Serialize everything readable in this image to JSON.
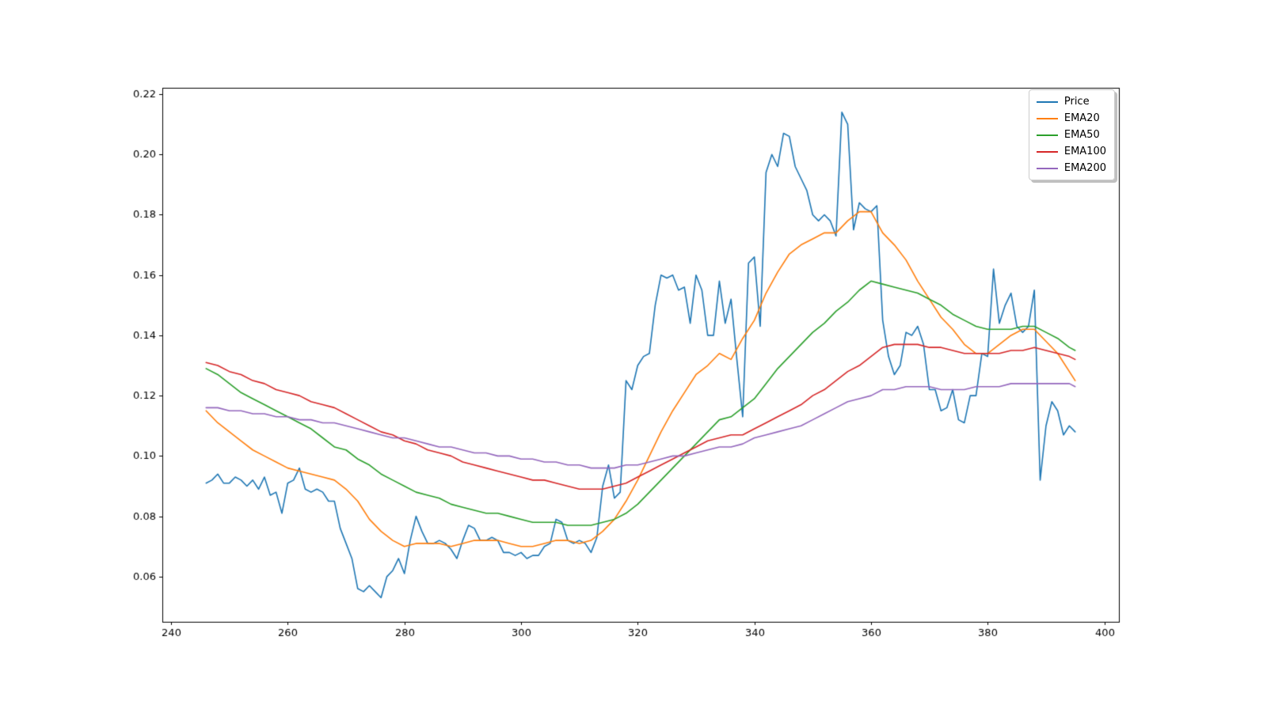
{
  "figure": {
    "background": "#ffffff",
    "text_color": "#000000"
  },
  "chart_data": {
    "type": "line",
    "title": "",
    "xlabel": "",
    "ylabel": "",
    "grid": false,
    "xlim": [
      238.5,
      402.5
    ],
    "ylim": [
      0.045,
      0.2221
    ],
    "xticks": [
      240,
      260,
      280,
      300,
      320,
      340,
      360,
      380,
      400
    ],
    "yticks": [
      0.06,
      0.08,
      0.1,
      0.12,
      0.14,
      0.16,
      0.18,
      0.2,
      0.22
    ],
    "legend": {
      "position": "upper right",
      "entries": [
        "Price",
        "EMA20",
        "EMA50",
        "EMA100",
        "EMA200"
      ]
    },
    "x_ema": [
      246,
      248,
      250,
      252,
      254,
      256,
      258,
      260,
      262,
      264,
      266,
      268,
      270,
      272,
      274,
      276,
      278,
      280,
      282,
      284,
      286,
      288,
      290,
      292,
      294,
      296,
      298,
      300,
      302,
      304,
      306,
      308,
      310,
      312,
      314,
      316,
      318,
      320,
      322,
      324,
      326,
      328,
      330,
      332,
      334,
      336,
      338,
      340,
      342,
      344,
      346,
      348,
      350,
      352,
      354,
      356,
      358,
      360,
      362,
      364,
      366,
      368,
      370,
      372,
      374,
      376,
      378,
      380,
      382,
      384,
      386,
      388,
      390,
      392,
      394,
      395
    ],
    "series": [
      {
        "name": "Price",
        "color": "#1f77b4",
        "x": [
          246,
          247,
          248,
          249,
          250,
          251,
          252,
          253,
          254,
          255,
          256,
          257,
          258,
          259,
          260,
          261,
          262,
          263,
          264,
          265,
          266,
          267,
          268,
          269,
          270,
          271,
          272,
          273,
          274,
          275,
          276,
          277,
          278,
          279,
          280,
          281,
          282,
          283,
          284,
          285,
          286,
          287,
          288,
          289,
          290,
          291,
          292,
          293,
          294,
          295,
          296,
          297,
          298,
          299,
          300,
          301,
          302,
          303,
          304,
          305,
          306,
          307,
          308,
          309,
          310,
          311,
          312,
          313,
          314,
          315,
          316,
          317,
          318,
          319,
          320,
          321,
          322,
          323,
          324,
          325,
          326,
          327,
          328,
          329,
          330,
          331,
          332,
          333,
          334,
          335,
          336,
          337,
          338,
          339,
          340,
          341,
          342,
          343,
          344,
          345,
          346,
          347,
          348,
          349,
          350,
          351,
          352,
          353,
          354,
          355,
          356,
          357,
          358,
          359,
          360,
          361,
          362,
          363,
          364,
          365,
          366,
          367,
          368,
          369,
          370,
          371,
          372,
          373,
          374,
          375,
          376,
          377,
          378,
          379,
          380,
          381,
          382,
          383,
          384,
          385,
          386,
          387,
          388,
          389,
          390,
          391,
          392,
          393,
          394,
          395
        ],
        "y": [
          0.091,
          0.092,
          0.094,
          0.091,
          0.091,
          0.093,
          0.092,
          0.09,
          0.092,
          0.089,
          0.093,
          0.087,
          0.088,
          0.081,
          0.091,
          0.092,
          0.096,
          0.089,
          0.088,
          0.089,
          0.088,
          0.085,
          0.085,
          0.076,
          0.071,
          0.066,
          0.056,
          0.055,
          0.057,
          0.055,
          0.053,
          0.06,
          0.062,
          0.066,
          0.061,
          0.072,
          0.08,
          0.075,
          0.071,
          0.071,
          0.072,
          0.071,
          0.069,
          0.066,
          0.072,
          0.077,
          0.076,
          0.072,
          0.072,
          0.073,
          0.072,
          0.068,
          0.068,
          0.067,
          0.068,
          0.066,
          0.067,
          0.067,
          0.07,
          0.071,
          0.079,
          0.078,
          0.072,
          0.071,
          0.072,
          0.071,
          0.068,
          0.073,
          0.09,
          0.097,
          0.086,
          0.088,
          0.125,
          0.122,
          0.13,
          0.133,
          0.134,
          0.15,
          0.16,
          0.159,
          0.16,
          0.155,
          0.156,
          0.144,
          0.16,
          0.155,
          0.14,
          0.14,
          0.158,
          0.144,
          0.152,
          0.132,
          0.113,
          0.164,
          0.166,
          0.143,
          0.194,
          0.2,
          0.196,
          0.207,
          0.206,
          0.196,
          0.192,
          0.188,
          0.18,
          0.178,
          0.18,
          0.178,
          0.173,
          0.214,
          0.21,
          0.175,
          0.184,
          0.182,
          0.181,
          0.183,
          0.145,
          0.133,
          0.127,
          0.13,
          0.141,
          0.14,
          0.143,
          0.137,
          0.122,
          0.122,
          0.115,
          0.116,
          0.122,
          0.112,
          0.111,
          0.12,
          0.12,
          0.134,
          0.133,
          0.162,
          0.144,
          0.15,
          0.154,
          0.143,
          0.141,
          0.143,
          0.155,
          0.092,
          0.11,
          0.118,
          0.115,
          0.107,
          0.11,
          0.108
        ]
      },
      {
        "name": "EMA20",
        "color": "#ff7f0e",
        "x_ref": "x_ema",
        "y": [
          0.115,
          0.111,
          0.108,
          0.105,
          0.102,
          0.1,
          0.098,
          0.096,
          0.095,
          0.094,
          0.093,
          0.092,
          0.089,
          0.085,
          0.079,
          0.075,
          0.072,
          0.07,
          0.071,
          0.071,
          0.071,
          0.07,
          0.071,
          0.072,
          0.072,
          0.072,
          0.071,
          0.07,
          0.07,
          0.071,
          0.072,
          0.072,
          0.071,
          0.072,
          0.075,
          0.079,
          0.085,
          0.092,
          0.1,
          0.108,
          0.115,
          0.121,
          0.127,
          0.13,
          0.134,
          0.132,
          0.139,
          0.145,
          0.154,
          0.161,
          0.167,
          0.17,
          0.172,
          0.174,
          0.174,
          0.178,
          0.181,
          0.181,
          0.174,
          0.17,
          0.165,
          0.158,
          0.152,
          0.146,
          0.142,
          0.137,
          0.134,
          0.134,
          0.137,
          0.14,
          0.142,
          0.142,
          0.138,
          0.134,
          0.128,
          0.125
        ]
      },
      {
        "name": "EMA50",
        "color": "#2ca02c",
        "x_ref": "x_ema",
        "y": [
          0.129,
          0.127,
          0.124,
          0.121,
          0.119,
          0.117,
          0.115,
          0.113,
          0.111,
          0.109,
          0.106,
          0.103,
          0.102,
          0.099,
          0.097,
          0.094,
          0.092,
          0.09,
          0.088,
          0.087,
          0.086,
          0.084,
          0.083,
          0.082,
          0.081,
          0.081,
          0.08,
          0.079,
          0.078,
          0.078,
          0.078,
          0.077,
          0.077,
          0.077,
          0.078,
          0.079,
          0.081,
          0.084,
          0.088,
          0.092,
          0.096,
          0.1,
          0.104,
          0.108,
          0.112,
          0.113,
          0.116,
          0.119,
          0.124,
          0.129,
          0.133,
          0.137,
          0.141,
          0.144,
          0.148,
          0.151,
          0.155,
          0.158,
          0.157,
          0.156,
          0.155,
          0.154,
          0.152,
          0.15,
          0.147,
          0.145,
          0.143,
          0.142,
          0.142,
          0.142,
          0.143,
          0.143,
          0.141,
          0.139,
          0.136,
          0.135
        ]
      },
      {
        "name": "EMA100",
        "color": "#d62728",
        "x_ref": "x_ema",
        "y": [
          0.131,
          0.13,
          0.128,
          0.127,
          0.125,
          0.124,
          0.122,
          0.121,
          0.12,
          0.118,
          0.117,
          0.116,
          0.114,
          0.112,
          0.11,
          0.108,
          0.107,
          0.105,
          0.104,
          0.102,
          0.101,
          0.1,
          0.098,
          0.097,
          0.096,
          0.095,
          0.094,
          0.093,
          0.092,
          0.092,
          0.091,
          0.09,
          0.089,
          0.089,
          0.089,
          0.09,
          0.091,
          0.093,
          0.095,
          0.097,
          0.099,
          0.101,
          0.103,
          0.105,
          0.106,
          0.107,
          0.107,
          0.109,
          0.111,
          0.113,
          0.115,
          0.117,
          0.12,
          0.122,
          0.125,
          0.128,
          0.13,
          0.133,
          0.136,
          0.137,
          0.137,
          0.137,
          0.136,
          0.136,
          0.135,
          0.134,
          0.134,
          0.134,
          0.134,
          0.135,
          0.135,
          0.136,
          0.135,
          0.134,
          0.133,
          0.132
        ]
      },
      {
        "name": "EMA200",
        "color": "#9467bd",
        "x_ref": "x_ema",
        "y": [
          0.116,
          0.116,
          0.115,
          0.115,
          0.114,
          0.114,
          0.113,
          0.113,
          0.112,
          0.112,
          0.111,
          0.111,
          0.11,
          0.109,
          0.108,
          0.107,
          0.106,
          0.106,
          0.105,
          0.104,
          0.103,
          0.103,
          0.102,
          0.101,
          0.101,
          0.1,
          0.1,
          0.099,
          0.099,
          0.098,
          0.098,
          0.097,
          0.097,
          0.096,
          0.096,
          0.096,
          0.097,
          0.097,
          0.098,
          0.099,
          0.1,
          0.1,
          0.101,
          0.102,
          0.103,
          0.103,
          0.104,
          0.106,
          0.107,
          0.108,
          0.109,
          0.11,
          0.112,
          0.114,
          0.116,
          0.118,
          0.119,
          0.12,
          0.122,
          0.122,
          0.123,
          0.123,
          0.123,
          0.122,
          0.122,
          0.122,
          0.123,
          0.123,
          0.123,
          0.124,
          0.124,
          0.124,
          0.124,
          0.124,
          0.124,
          0.123
        ]
      }
    ]
  }
}
